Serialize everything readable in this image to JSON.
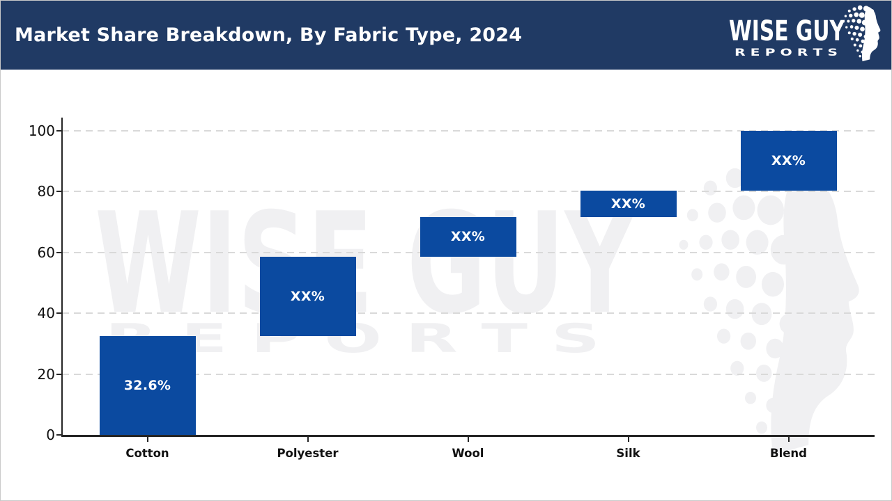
{
  "header": {
    "title": "Market Share Breakdown, By Fabric Type, 2024",
    "logo": {
      "line1": "WISE GUY",
      "line2": "R E P O R T S"
    }
  },
  "watermark": {
    "line1": "WISE GUY",
    "line2": "R E P O R T S"
  },
  "chart_data": {
    "type": "bar",
    "subtype": "waterfall",
    "title": "Market Share Breakdown, By Fabric Type, 2024",
    "categories": [
      "Cotton",
      "Polyester",
      "Wool",
      "Silk",
      "Blend"
    ],
    "segments": [
      {
        "category": "Cotton",
        "start": 0,
        "end": 32.6,
        "label": "32.6%"
      },
      {
        "category": "Polyester",
        "start": 32.6,
        "end": 58.6,
        "label": "XX%"
      },
      {
        "category": "Wool",
        "start": 58.6,
        "end": 71.6,
        "label": "XX%"
      },
      {
        "category": "Silk",
        "start": 71.6,
        "end": 80.3,
        "label": "XX%"
      },
      {
        "category": "Blend",
        "start": 80.3,
        "end": 100,
        "label": "XX%"
      }
    ],
    "y_ticks": [
      0,
      20,
      40,
      60,
      80,
      100
    ],
    "ylim": [
      0,
      100
    ],
    "xlabel": "",
    "ylabel": "",
    "grid": "horizontal-dashed",
    "legend": null,
    "bar_color": "#0b4aa0",
    "bar_label_color": "#ffffff"
  },
  "colors": {
    "header_bg": "#203a64",
    "page_bg": "#ffffff",
    "grid": "#d9d9d9",
    "axis": "#262626",
    "tick_text": "#111111",
    "watermark": "#f0f0f2"
  }
}
